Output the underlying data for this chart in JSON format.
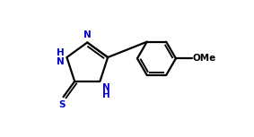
{
  "bg_color": "#ffffff",
  "bond_color": "#000000",
  "N_color": "#0000cc",
  "S_color": "#0000cc",
  "lw": 1.6,
  "fs": 7.5,
  "fig_w": 2.83,
  "fig_h": 1.53,
  "dpi": 100,
  "xlim": [
    0.0,
    9.5
  ],
  "ylim": [
    2.5,
    8.5
  ]
}
